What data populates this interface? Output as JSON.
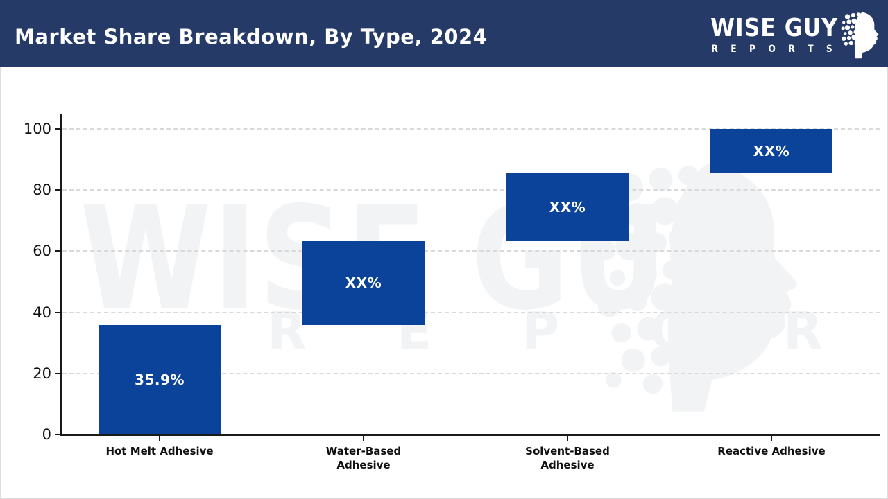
{
  "header": {
    "title": "Market Share Breakdown, By Type, 2024"
  },
  "logo": {
    "brand_line1": "WISE GUY",
    "brand_line2": "R E P O R T S"
  },
  "watermark": {
    "line1": "WISE GUY",
    "line2": "R E P O R T S"
  },
  "chart_data": {
    "type": "bar",
    "subtype": "waterfall-stacked-percentage",
    "title": "Market Share Breakdown, By Type, 2024",
    "categories": [
      "Hot Melt Adhesive",
      "Water-Based\nAdhesive",
      "Solvent-Based\nAdhesive",
      "Reactive Adhesive"
    ],
    "bars": [
      {
        "category": "Hot Melt Adhesive",
        "start": 0,
        "end": 35.9,
        "value": 35.9,
        "label": "35.9%"
      },
      {
        "category": "Water-Based Adhesive",
        "start": 35.9,
        "end": 63.2,
        "value": 27.3,
        "label": "XX%"
      },
      {
        "category": "Solvent-Based Adhesive",
        "start": 63.2,
        "end": 85.5,
        "value": 22.3,
        "label": "XX%"
      },
      {
        "category": "Reactive Adhesive",
        "start": 85.5,
        "end": 100,
        "value": 14.5,
        "label": "XX%"
      }
    ],
    "yticks": [
      0,
      20,
      40,
      60,
      80,
      100
    ],
    "ylim": [
      0,
      100
    ],
    "xlabel": "",
    "ylabel": "",
    "grid": "horizontal-dashed",
    "legend": "none",
    "bar_color": "#0a4399",
    "bar_label_color": "#ffffff"
  },
  "colors": {
    "header_bg": "#253a66",
    "bar": "#0a4399",
    "grid": "#d9d9d9",
    "axis": "#1a1a1a",
    "watermark": "#f2f3f5"
  }
}
